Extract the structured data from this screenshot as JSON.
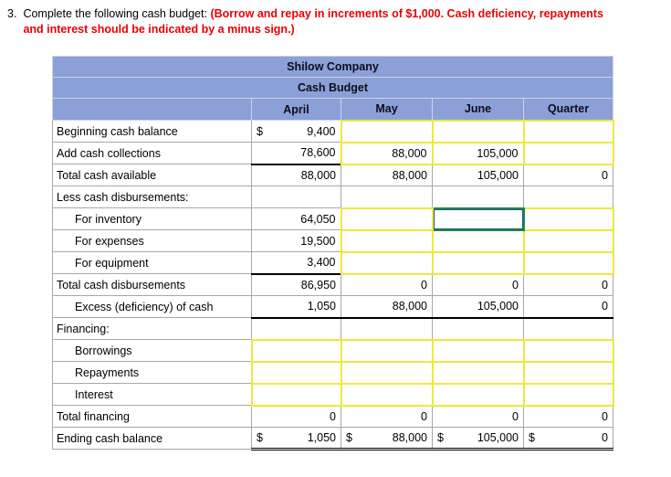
{
  "instruction": {
    "number": "3.",
    "text_black": "Complete the following cash budget: ",
    "text_red": "(Borrow and repay in increments of $1,000. Cash deficiency, repayments and interest should be indicated by a minus sign.)"
  },
  "table": {
    "title": "Shilow Company",
    "subtitle": "Cash Budget",
    "columns": [
      "April",
      "May",
      "June",
      "Quarter"
    ],
    "rows": [
      {
        "label": "Beginning cash balance",
        "indent": false,
        "cells": [
          {
            "d": "$",
            "v": "9,400",
            "t": "given"
          },
          {
            "v": "",
            "t": "input"
          },
          {
            "v": "",
            "t": "input"
          },
          {
            "v": "",
            "t": "input"
          }
        ]
      },
      {
        "label": "Add cash collections",
        "indent": false,
        "cells": [
          {
            "v": "78,600",
            "t": "given"
          },
          {
            "v": "88,000",
            "t": "input"
          },
          {
            "v": "105,000",
            "t": "input"
          },
          {
            "v": "",
            "t": "input"
          }
        ]
      },
      {
        "label": "Total cash available",
        "indent": false,
        "line_top": true,
        "cells": [
          {
            "v": "88,000",
            "t": "given"
          },
          {
            "v": "88,000",
            "t": "given"
          },
          {
            "v": "105,000",
            "t": "given"
          },
          {
            "v": "0",
            "t": "given"
          }
        ]
      },
      {
        "label": "Less cash disbursements:",
        "indent": false,
        "cells": [
          {
            "v": "",
            "t": "none"
          },
          {
            "v": "",
            "t": "none"
          },
          {
            "v": "",
            "t": "none"
          },
          {
            "v": "",
            "t": "none"
          }
        ]
      },
      {
        "label": "For inventory",
        "indent": true,
        "cells": [
          {
            "v": "64,050",
            "t": "given"
          },
          {
            "v": "",
            "t": "input"
          },
          {
            "v": "",
            "t": "active"
          },
          {
            "v": "",
            "t": "input"
          }
        ]
      },
      {
        "label": "For expenses",
        "indent": true,
        "cells": [
          {
            "v": "19,500",
            "t": "given"
          },
          {
            "v": "",
            "t": "input"
          },
          {
            "v": "",
            "t": "input"
          },
          {
            "v": "",
            "t": "input"
          }
        ]
      },
      {
        "label": "For equipment",
        "indent": true,
        "cells": [
          {
            "v": "3,400",
            "t": "given"
          },
          {
            "v": "",
            "t": "input"
          },
          {
            "v": "",
            "t": "input"
          },
          {
            "v": "",
            "t": "input"
          }
        ]
      },
      {
        "label": "Total cash disbursements",
        "indent": false,
        "line_top": true,
        "cells": [
          {
            "v": "86,950",
            "t": "given"
          },
          {
            "v": "0",
            "t": "given"
          },
          {
            "v": "0",
            "t": "given"
          },
          {
            "v": "0",
            "t": "given"
          }
        ]
      },
      {
        "label": "Excess (deficiency) of cash",
        "indent": true,
        "line_bottom": true,
        "cells": [
          {
            "v": "1,050",
            "t": "given"
          },
          {
            "v": "88,000",
            "t": "given"
          },
          {
            "v": "105,000",
            "t": "given"
          },
          {
            "v": "0",
            "t": "given"
          }
        ]
      },
      {
        "label": "Financing:",
        "indent": false,
        "cells": [
          {
            "v": "",
            "t": "none"
          },
          {
            "v": "",
            "t": "none"
          },
          {
            "v": "",
            "t": "none"
          },
          {
            "v": "",
            "t": "none"
          }
        ]
      },
      {
        "label": "Borrowings",
        "indent": true,
        "cells": [
          {
            "v": "",
            "t": "input"
          },
          {
            "v": "",
            "t": "input"
          },
          {
            "v": "",
            "t": "input"
          },
          {
            "v": "",
            "t": "input"
          }
        ]
      },
      {
        "label": "Repayments",
        "indent": true,
        "cells": [
          {
            "v": "",
            "t": "input"
          },
          {
            "v": "",
            "t": "input"
          },
          {
            "v": "",
            "t": "input"
          },
          {
            "v": "",
            "t": "input"
          }
        ]
      },
      {
        "label": "Interest",
        "indent": true,
        "cells": [
          {
            "v": "",
            "t": "input"
          },
          {
            "v": "",
            "t": "input"
          },
          {
            "v": "",
            "t": "input"
          },
          {
            "v": "",
            "t": "input"
          }
        ]
      },
      {
        "label": "Total financing",
        "indent": false,
        "cells": [
          {
            "v": "0",
            "t": "given"
          },
          {
            "v": "0",
            "t": "given"
          },
          {
            "v": "0",
            "t": "given"
          },
          {
            "v": "0",
            "t": "given"
          }
        ]
      },
      {
        "label": "Ending cash balance",
        "indent": false,
        "double_bottom": true,
        "cells": [
          {
            "d": "$",
            "v": "1,050",
            "t": "given"
          },
          {
            "d": "$",
            "v": "88,000",
            "t": "given"
          },
          {
            "d": "$",
            "v": "105,000",
            "t": "given"
          },
          {
            "d": "$",
            "v": "0",
            "t": "given"
          }
        ]
      }
    ]
  },
  "colors": {
    "header_bg": "#8ca0d8",
    "grid_line": "#a8a8a8",
    "input_cell_border": "#ede93f",
    "active_cell_border": "#1e8c3c",
    "active_cell_inner": "#1d509e",
    "total_rule": "#000000",
    "instruction_red": "#eb0000"
  }
}
